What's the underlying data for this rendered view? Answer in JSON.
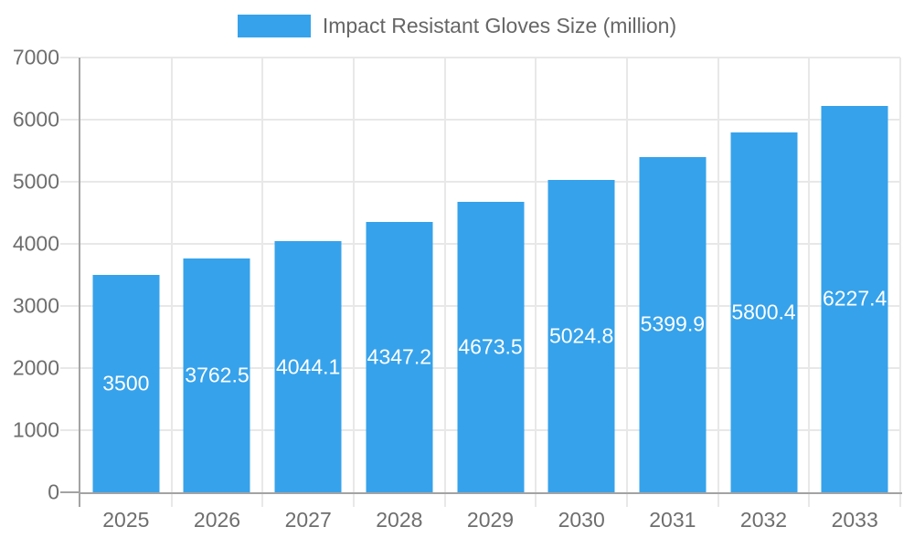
{
  "chart_data": {
    "type": "bar",
    "categories": [
      "2025",
      "2026",
      "2027",
      "2028",
      "2029",
      "2030",
      "2031",
      "2032",
      "2033"
    ],
    "values": [
      3500,
      3762.5,
      4044.1,
      4347.2,
      4673.5,
      5024.8,
      5399.9,
      5800.4,
      6227.4
    ],
    "value_labels": [
      "3500",
      "3762.5",
      "4044.1",
      "4347.2",
      "4673.5",
      "5024.8",
      "5399.9",
      "5800.4",
      "6227.4"
    ],
    "title": "Impact Resistant Gloves Size (million)",
    "xlabel": "",
    "ylabel": "",
    "ylim": [
      0,
      7000
    ],
    "yticks": [
      0,
      1000,
      2000,
      3000,
      4000,
      5000,
      6000,
      7000
    ],
    "ytick_labels": [
      "0",
      "1000",
      "2000",
      "3000",
      "4000",
      "5000",
      "6000",
      "7000"
    ],
    "grid": true,
    "legend": {
      "position": "top-center",
      "label": "Impact Resistant Gloves Size (million)"
    }
  },
  "colors": {
    "bar": "#36A2EB",
    "grid": "#E8E8E8",
    "axis": "#A3A3A3",
    "tick_label": "#6E6E6E",
    "legend_text": "#666666",
    "value_label": "#FFFFFF",
    "background": "#FFFFFF"
  }
}
